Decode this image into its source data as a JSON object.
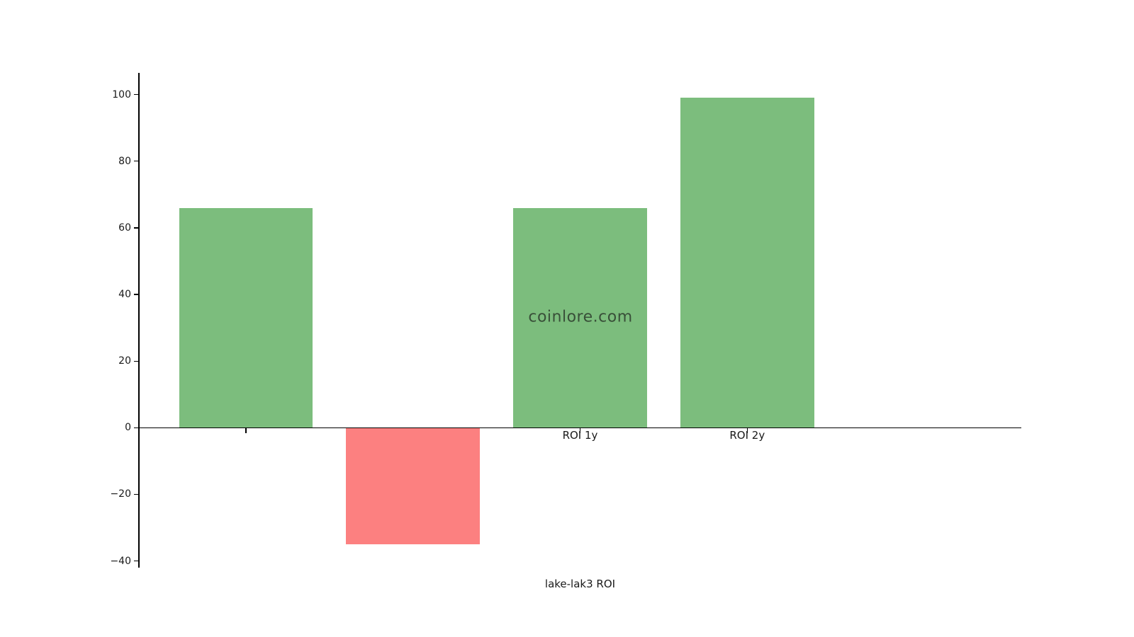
{
  "chart_data": {
    "type": "bar",
    "categories": [
      "",
      "",
      "ROI 1y",
      "ROI 2y"
    ],
    "x_positions": [
      0,
      1,
      2,
      3
    ],
    "values": [
      66,
      -35,
      66,
      99
    ],
    "bar_colors": [
      "#7cbd7d",
      "#fc8080",
      "#7cbd7d",
      "#7cbd7d"
    ],
    "series_note": "single series; green = positive ROI, red = negative ROI",
    "title": "",
    "xlabel": "lake-lak3 ROI",
    "ylabel": "",
    "xlim": [
      -0.64,
      4.64
    ],
    "ylim": [
      -42,
      106.5
    ],
    "bar_width": 0.8,
    "yticks": [
      100,
      80,
      60,
      40,
      20,
      0,
      -20,
      -40
    ],
    "ytick_labels": [
      "100",
      "80",
      "60",
      "40",
      "20",
      "0",
      "−20",
      "−40"
    ],
    "grid": false,
    "legend": false,
    "watermark": "coinlore.com",
    "colors": {
      "positive_bar": "#7cbd7d",
      "negative_bar": "#fc8080",
      "axis": "#000000",
      "tick_text": "#1a1a1a",
      "watermark_text": "rgba(20,20,20,0.65)",
      "background": "#ffffff"
    }
  }
}
